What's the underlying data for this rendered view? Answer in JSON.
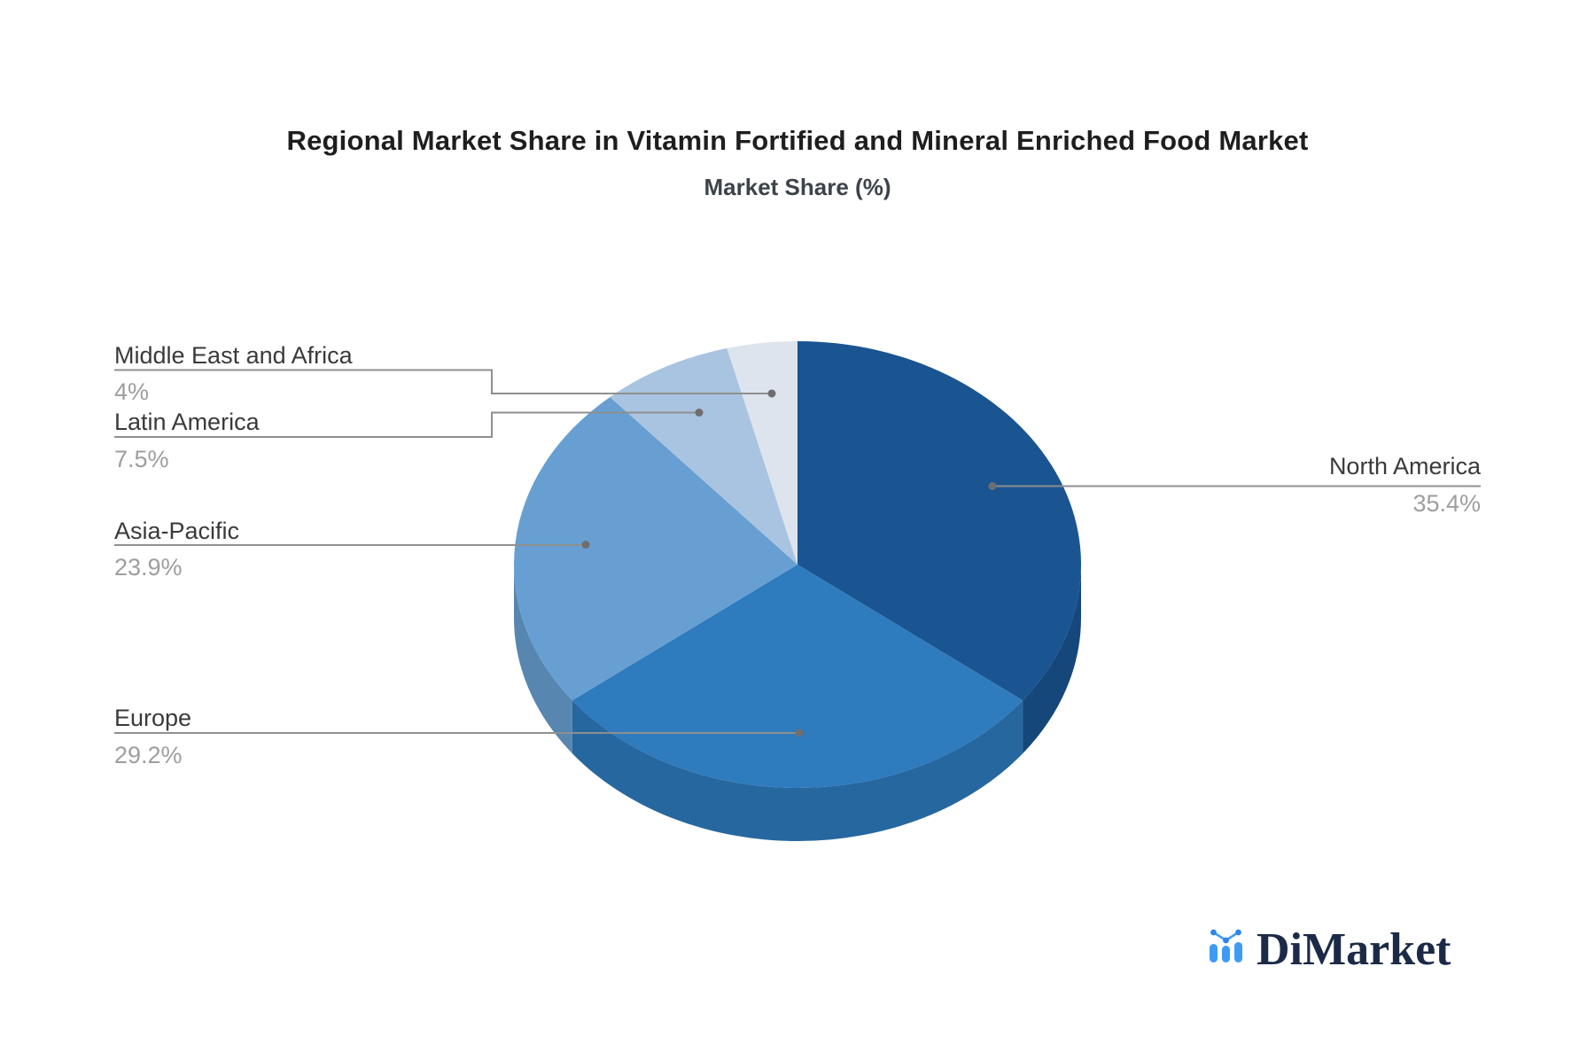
{
  "chart": {
    "title": "Regional Market Share in Vitamin Fortified and Mineral Enriched Food Market",
    "subtitle": "Market Share (%)"
  },
  "chart_data": {
    "type": "pie",
    "style": "3d",
    "title": "Regional Market Share in Vitamin Fortified and Mineral Enriched Food Market",
    "subtitle": "Market Share (%)",
    "unit": "%",
    "direction": "clockwise",
    "start_angle_deg": 0,
    "legend_position": "callout-labels",
    "slices": [
      {
        "name": "North America",
        "value": 35.4,
        "value_label": "35.4%",
        "color": "#1A5591"
      },
      {
        "name": "Europe",
        "value": 29.2,
        "value_label": "29.2%",
        "color": "#2E7BBE"
      },
      {
        "name": "Asia-Pacific",
        "value": 23.9,
        "value_label": "23.9%",
        "color": "#689FD2"
      },
      {
        "name": "Latin America",
        "value": 7.5,
        "value_label": "7.5%",
        "color": "#A9C4E1"
      },
      {
        "name": "Middle East and Africa",
        "value": 4,
        "value_label": "4%",
        "color": "#DDE4EE"
      }
    ]
  },
  "footer": {
    "logo_text": "DiMarket"
  },
  "colors": {
    "leader_line": "#8F8F8F",
    "leader_dot": "#6E6E6E",
    "label_text": "#3A3A3A",
    "value_text": "#9E9E9E",
    "logo_text": "#1B2A47",
    "logo_accent": "#3E9BF5",
    "logo_dot": "#2F86E8"
  }
}
